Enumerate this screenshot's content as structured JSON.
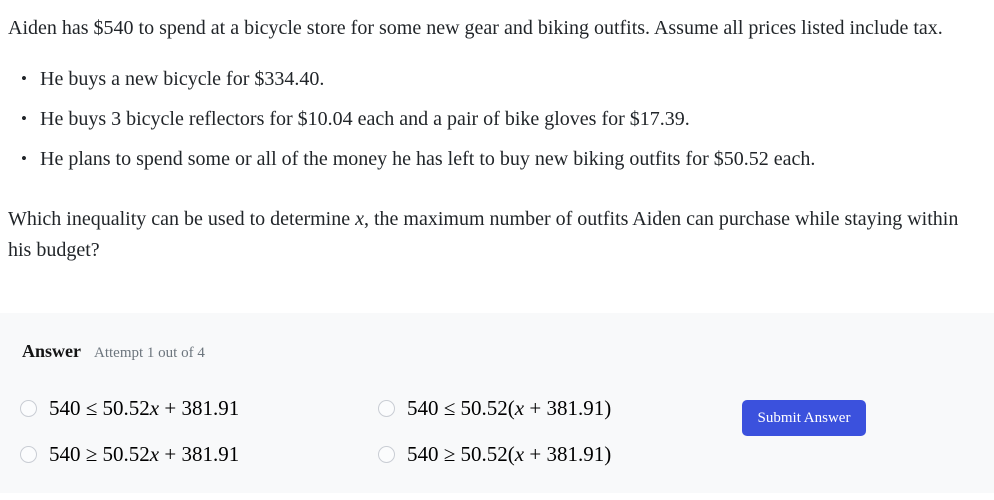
{
  "problem": {
    "intro": "Aiden has $540 to spend at a bicycle store for some new gear and biking outfits. Assume all prices listed include tax.",
    "bullets": [
      "He buys a new bicycle for $334.40.",
      "He buys 3 bicycle reflectors for $10.04 each and a pair of bike gloves for $17.39.",
      "He plans to spend some or all of the money he has left to buy new biking outfits for $50.52 each."
    ],
    "bullet_glyph": "•",
    "question_pre": "Which inequality can be used to determine ",
    "question_var": "x",
    "question_post": ", the maximum number of outfits Aiden can purchase while staying within his budget?"
  },
  "answer": {
    "heading": "Answer",
    "attempt_label": "Attempt 1 out of 4",
    "options": [
      {
        "pre": "540 ≤ 50.52",
        "var": "x",
        "post": " + 381.91"
      },
      {
        "pre": "540 ≤ 50.52(",
        "var": "x",
        "post": " + 381.91)"
      },
      {
        "pre": "540 ≥ 50.52",
        "var": "x",
        "post": " + 381.91"
      },
      {
        "pre": "540 ≥ 50.52(",
        "var": "x",
        "post": " + 381.91)"
      }
    ],
    "submit_label": "Submit Answer"
  },
  "colors": {
    "panel_bg": "#f8f9fa",
    "button_bg": "#3b51dd",
    "button_text": "#ffffff",
    "attempt_text": "#6c757d",
    "body_text": "#212529",
    "radio_border": "#c9cdd4"
  }
}
